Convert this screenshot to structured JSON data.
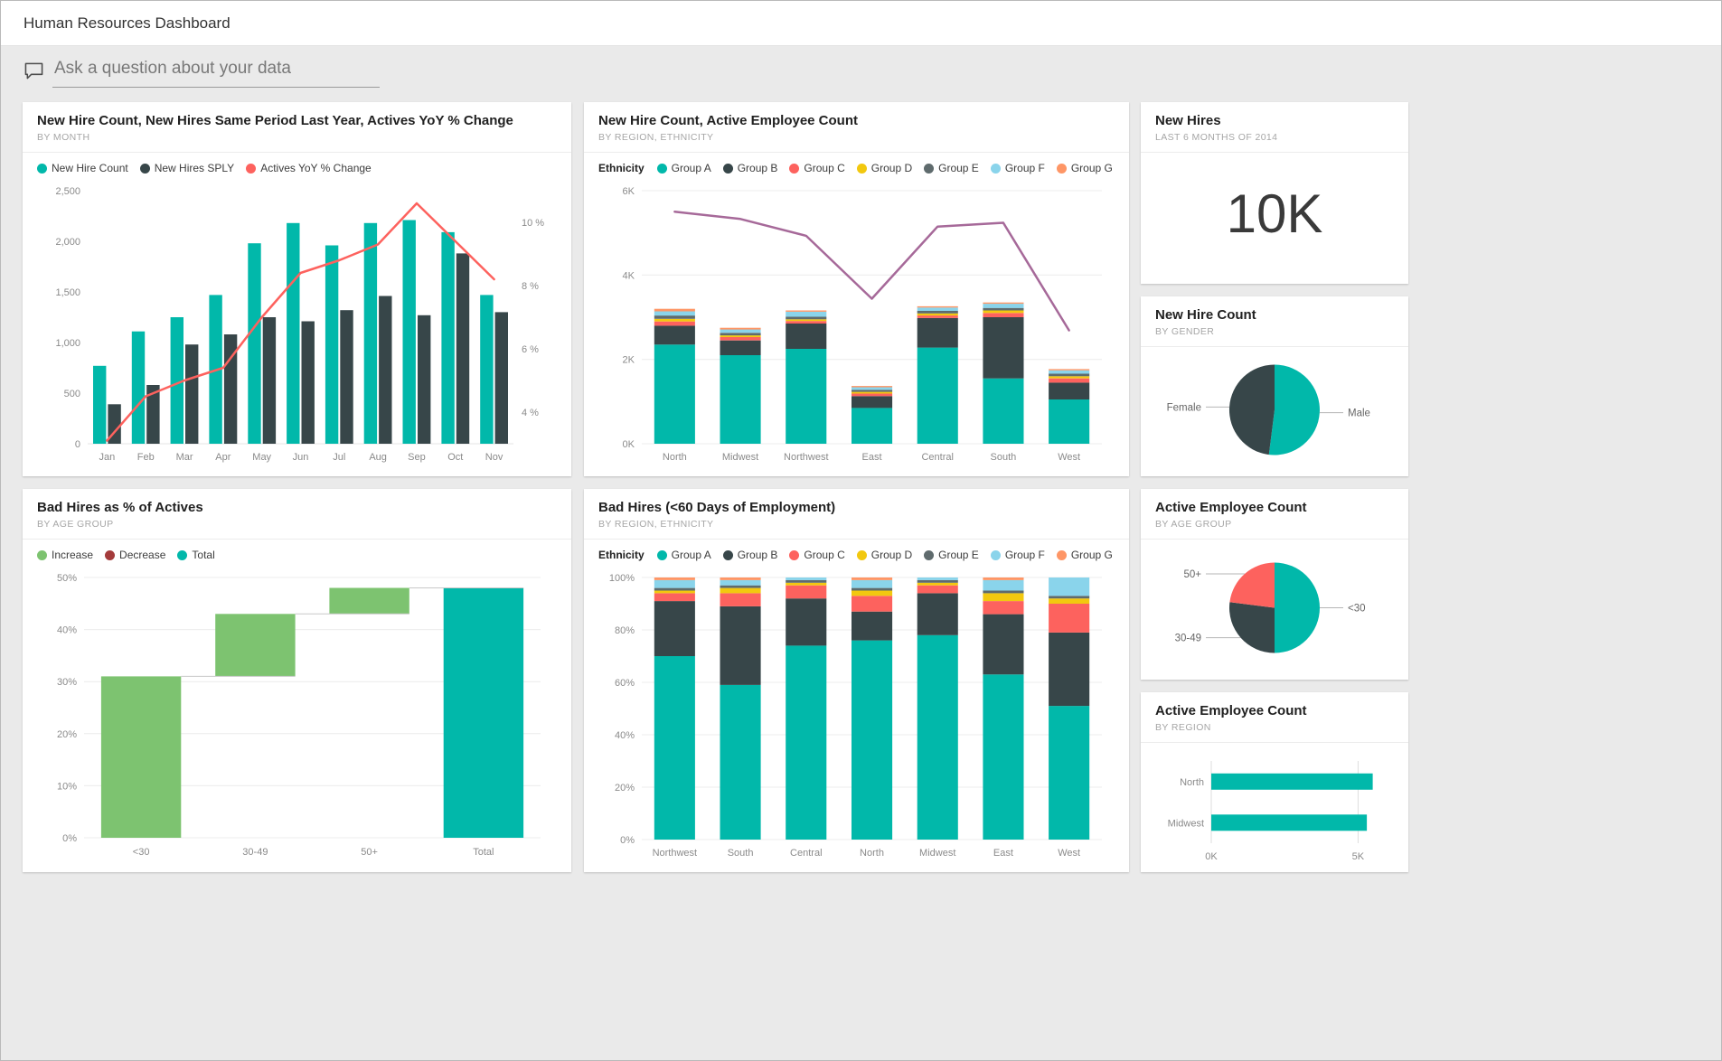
{
  "app": {
    "title": "Human Resources Dashboard"
  },
  "qna": {
    "placeholder": "Ask a question about your data"
  },
  "ethnicity": {
    "title": "Ethnicity",
    "groups": [
      "Group A",
      "Group B",
      "Group C",
      "Group D",
      "Group E",
      "Group F",
      "Group G"
    ],
    "colors": [
      "#01B8AA",
      "#374649",
      "#FD625E",
      "#F2C80F",
      "#5F6B6D",
      "#8AD4EB",
      "#FE9666"
    ]
  },
  "tiles": {
    "combo": {
      "title": "New Hire Count, New Hires Same Period Last Year, Actives YoY % Change",
      "subtitle": "BY MONTH"
    },
    "region_stack": {
      "title": "New Hire Count, Active Employee Count",
      "subtitle": "BY REGION, ETHNICITY"
    },
    "new_hires_card": {
      "title": "New Hires",
      "subtitle": "LAST 6 MONTHS OF 2014",
      "value": "10K"
    },
    "gender_pie": {
      "title": "New Hire Count",
      "subtitle": "BY GENDER"
    },
    "waterfall": {
      "title": "Bad Hires as % of Actives",
      "subtitle": "BY AGE GROUP"
    },
    "bad_hires": {
      "title": "Bad Hires (<60 Days of Employment)",
      "subtitle": "BY REGION, ETHNICITY"
    },
    "age_pie": {
      "title": "Active Employee Count",
      "subtitle": "BY AGE GROUP"
    },
    "region_bar": {
      "title": "Active Employee Count",
      "subtitle": "BY REGION"
    }
  },
  "chart_data": [
    {
      "id": "combo",
      "type": "bar",
      "title": "New Hire Count, New Hires Same Period Last Year, Actives YoY % Change by Month",
      "categories": [
        "Jan",
        "Feb",
        "Mar",
        "Apr",
        "May",
        "Jun",
        "Jul",
        "Aug",
        "Sep",
        "Oct",
        "Nov"
      ],
      "series": [
        {
          "name": "New Hire Count",
          "kind": "bar",
          "color": "#01B8AA",
          "values": [
            770,
            1110,
            1250,
            1470,
            1980,
            2180,
            1960,
            2180,
            2210,
            2090,
            1470
          ]
        },
        {
          "name": "New Hires SPLY",
          "kind": "bar",
          "color": "#374649",
          "values": [
            390,
            580,
            980,
            1080,
            1250,
            1210,
            1320,
            1460,
            1270,
            1880,
            1300
          ]
        },
        {
          "name": "Actives YoY % Change",
          "kind": "line",
          "color": "#FD625E",
          "axis": "right",
          "values": [
            3.1,
            4.5,
            5.0,
            5.4,
            7.0,
            8.4,
            8.8,
            9.3,
            10.6,
            9.4,
            8.2
          ]
        }
      ],
      "y_left": {
        "min": 0,
        "max": 2500,
        "tick_values": [
          0,
          500,
          1000,
          1500,
          2000,
          2500
        ],
        "tick_labels": [
          "0",
          "500",
          "1,000",
          "1,500",
          "2,000",
          "2,500"
        ]
      },
      "y_right": {
        "min": 3,
        "max": 11,
        "tick_values": [
          4,
          6,
          8,
          10
        ],
        "tick_labels": [
          "4 %",
          "6 %",
          "8 %",
          "10 %"
        ]
      }
    },
    {
      "id": "region_stack",
      "type": "bar",
      "stacked": true,
      "title": "New Hire Count, Active Employee Count by Region, Ethnicity",
      "categories": [
        "North",
        "Midwest",
        "Northwest",
        "East",
        "Central",
        "South",
        "West"
      ],
      "series": [
        {
          "name": "Group A",
          "values": [
            2350,
            2100,
            2250,
            850,
            2280,
            1550,
            1050
          ]
        },
        {
          "name": "Group B",
          "values": [
            450,
            350,
            600,
            280,
            700,
            1450,
            400
          ]
        },
        {
          "name": "Group C",
          "values": [
            100,
            80,
            60,
            60,
            60,
            100,
            100
          ]
        },
        {
          "name": "Group D",
          "values": [
            60,
            40,
            40,
            40,
            50,
            60,
            50
          ]
        },
        {
          "name": "Group E",
          "values": [
            80,
            60,
            60,
            50,
            60,
            60,
            60
          ]
        },
        {
          "name": "Group F",
          "values": [
            100,
            80,
            120,
            60,
            80,
            100,
            80
          ]
        },
        {
          "name": "Group G",
          "values": [
            60,
            40,
            30,
            30,
            30,
            30,
            30
          ]
        }
      ],
      "line": {
        "name": "Active Employee Count",
        "color": "#A66999",
        "values": [
          5500,
          5330,
          4930,
          3440,
          5150,
          5240,
          2690
        ]
      },
      "y": {
        "min": 0,
        "max": 6000,
        "tick_values": [
          0,
          2000,
          4000,
          6000
        ],
        "tick_labels": [
          "0K",
          "2K",
          "4K",
          "6K"
        ]
      }
    },
    {
      "id": "new_hires_card",
      "type": "card",
      "title": "New Hires last 6 months of 2014",
      "value": "10K"
    },
    {
      "id": "gender_pie",
      "type": "pie",
      "title": "New Hire Count by Gender",
      "slices": [
        {
          "label": "Male",
          "value": 52,
          "color": "#01B8AA"
        },
        {
          "label": "Female",
          "value": 48,
          "color": "#374649"
        }
      ]
    },
    {
      "id": "waterfall",
      "type": "waterfall",
      "title": "Bad Hires as % of Actives by Age Group",
      "legend": [
        {
          "label": "Increase",
          "color": "#7DC370"
        },
        {
          "label": "Decrease",
          "color": "#A43B3B"
        },
        {
          "label": "Total",
          "color": "#01B8AA"
        }
      ],
      "bars": [
        {
          "label": "<30",
          "from": 0,
          "to": 31,
          "color": "#7DC370"
        },
        {
          "label": "30-49",
          "from": 31,
          "to": 43,
          "color": "#7DC370"
        },
        {
          "label": "50+",
          "from": 43,
          "to": 48,
          "color": "#7DC370"
        },
        {
          "label": "Total",
          "from": 0,
          "to": 48,
          "color": "#01B8AA"
        }
      ],
      "y": {
        "min": 0,
        "max": 50,
        "tick_values": [
          0,
          10,
          20,
          30,
          40,
          50
        ],
        "tick_labels": [
          "0%",
          "10%",
          "20%",
          "30%",
          "40%",
          "50%"
        ]
      }
    },
    {
      "id": "bad_hires",
      "type": "bar",
      "stacked": true,
      "percent": true,
      "title": "Bad Hires (<60 Days of Employment) by Region, Ethnicity",
      "categories": [
        "Northwest",
        "South",
        "Central",
        "North",
        "Midwest",
        "East",
        "West"
      ],
      "series": [
        {
          "name": "Group A",
          "values": [
            70,
            59,
            74,
            76,
            78,
            63,
            51
          ]
        },
        {
          "name": "Group B",
          "values": [
            21,
            30,
            18,
            11,
            16,
            23,
            28
          ]
        },
        {
          "name": "Group C",
          "values": [
            3,
            5,
            5,
            6,
            3,
            5,
            11
          ]
        },
        {
          "name": "Group D",
          "values": [
            1,
            2,
            1,
            2,
            1,
            3,
            2
          ]
        },
        {
          "name": "Group E",
          "values": [
            1,
            1,
            1,
            1,
            1,
            1,
            1
          ]
        },
        {
          "name": "Group F",
          "values": [
            3,
            2,
            1,
            3,
            1,
            4,
            7
          ]
        },
        {
          "name": "Group G",
          "values": [
            1,
            1,
            0,
            1,
            0,
            1,
            0
          ]
        }
      ],
      "y": {
        "min": 0,
        "max": 100,
        "tick_values": [
          0,
          20,
          40,
          60,
          80,
          100
        ],
        "tick_labels": [
          "0%",
          "20%",
          "40%",
          "60%",
          "80%",
          "100%"
        ]
      }
    },
    {
      "id": "age_pie",
      "type": "pie",
      "title": "Active Employee Count by Age Group",
      "slices": [
        {
          "label": "<30",
          "value": 50,
          "color": "#01B8AA"
        },
        {
          "label": "30-49",
          "value": 27,
          "color": "#374649"
        },
        {
          "label": "50+",
          "value": 23,
          "color": "#FD625E"
        }
      ]
    },
    {
      "id": "region_bar",
      "type": "hbar",
      "title": "Active Employee Count by Region",
      "categories": [
        "North",
        "Midwest"
      ],
      "values": [
        5.5,
        5.3
      ],
      "unit": "K",
      "color": "#01B8AA",
      "x": {
        "tick_values": [
          0,
          5
        ],
        "tick_labels": [
          "0K",
          "5K"
        ]
      }
    }
  ]
}
